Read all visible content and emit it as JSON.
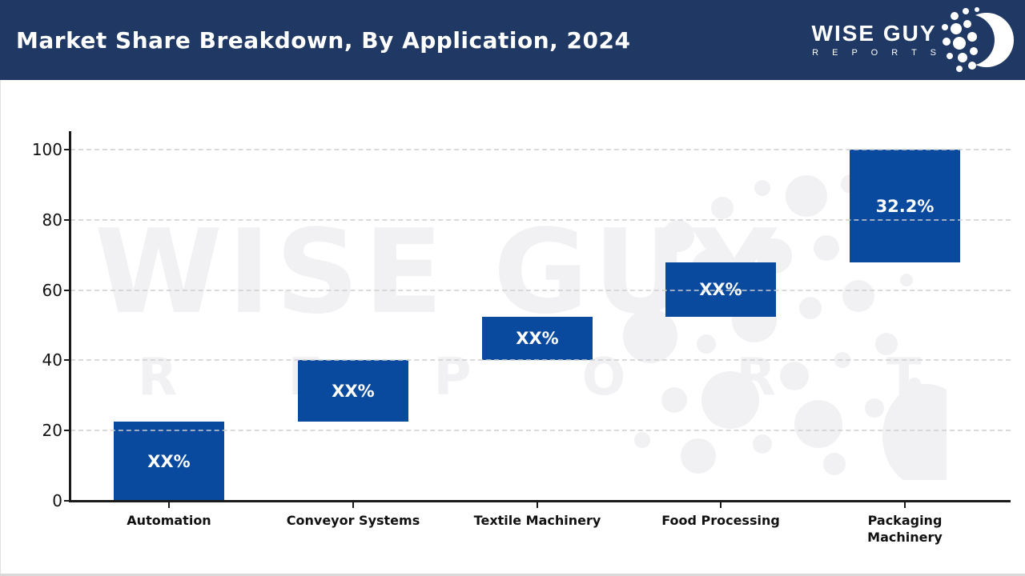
{
  "header": {
    "title": "Market Share Breakdown, By Application, 2024",
    "bg_color": "#1f3864",
    "logo": {
      "name": "WISE GUY",
      "sub": "R E P O R T S"
    }
  },
  "watermark": {
    "line1": "WISE GUY",
    "line2": "R E P O R T S"
  },
  "chart_data": {
    "type": "bar",
    "subtype": "waterfall-floating-bars",
    "title": "Market Share Breakdown, By Application, 2024",
    "categories": [
      "Automation",
      "Conveyor Systems",
      "Textile Machinery",
      "Food Processing",
      "Packaging Machinery"
    ],
    "category_display": [
      "Automation",
      "Conveyor Systems",
      "Textile Machinery",
      "Food Processing",
      "Packaging\nMachinery"
    ],
    "bars": [
      {
        "category": "Automation",
        "start": 0,
        "end": 22.5,
        "label": "XX%"
      },
      {
        "category": "Conveyor Systems",
        "start": 22.5,
        "end": 40.0,
        "label": "XX%"
      },
      {
        "category": "Textile Machinery",
        "start": 40.0,
        "end": 52.5,
        "label": "XX%"
      },
      {
        "category": "Food Processing",
        "start": 52.5,
        "end": 67.8,
        "label": "XX%"
      },
      {
        "category": "Packaging Machinery",
        "start": 67.8,
        "end": 100.0,
        "label": "32.2%"
      }
    ],
    "ylim": [
      0,
      100
    ],
    "yticks": [
      0,
      20,
      40,
      60,
      80,
      100
    ],
    "xlabel": "",
    "ylabel": "",
    "grid": "horizontal-dashed",
    "legend": null,
    "bar_color": "#0a4a9e",
    "bar_label_color": "#ffffff",
    "axis_color": "#1a1a1a"
  }
}
